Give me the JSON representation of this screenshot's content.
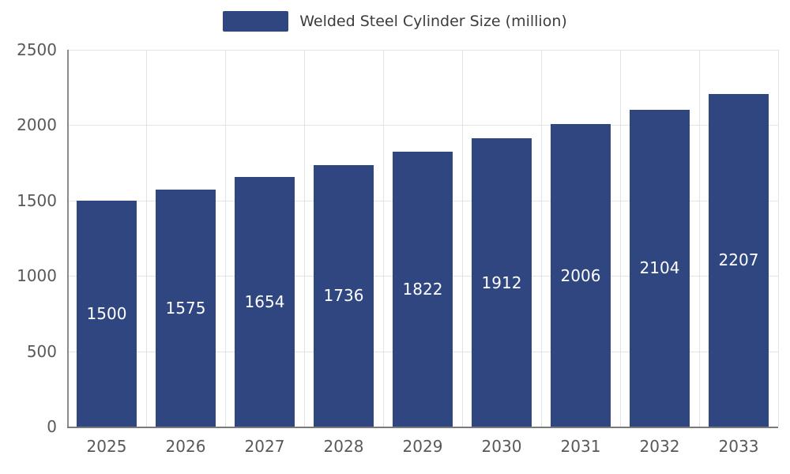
{
  "legend": {
    "label": "Welded Steel Cylinder Size (million)"
  },
  "chart_data": {
    "type": "bar",
    "title": "Welded Steel Cylinder Size (million)",
    "categories": [
      "2025",
      "2026",
      "2027",
      "2028",
      "2029",
      "2030",
      "2031",
      "2032",
      "2033"
    ],
    "values": [
      1500,
      1575,
      1654,
      1736,
      1822,
      1912,
      2006,
      2104,
      2207
    ],
    "series_name": "Welded Steel Cylinder Size (million)",
    "xlabel": "",
    "ylabel": "",
    "ylim": [
      0,
      2500
    ],
    "yticks": [
      0,
      500,
      1000,
      1500,
      2000,
      2500
    ],
    "grid": true,
    "legend_position": "top",
    "bar_color": "#2f4680",
    "bar_label_color": "#ffffff",
    "grid_color": "#e3e3e3",
    "axis_color": "#8a8a8a",
    "tick_label_color": "#595959"
  }
}
